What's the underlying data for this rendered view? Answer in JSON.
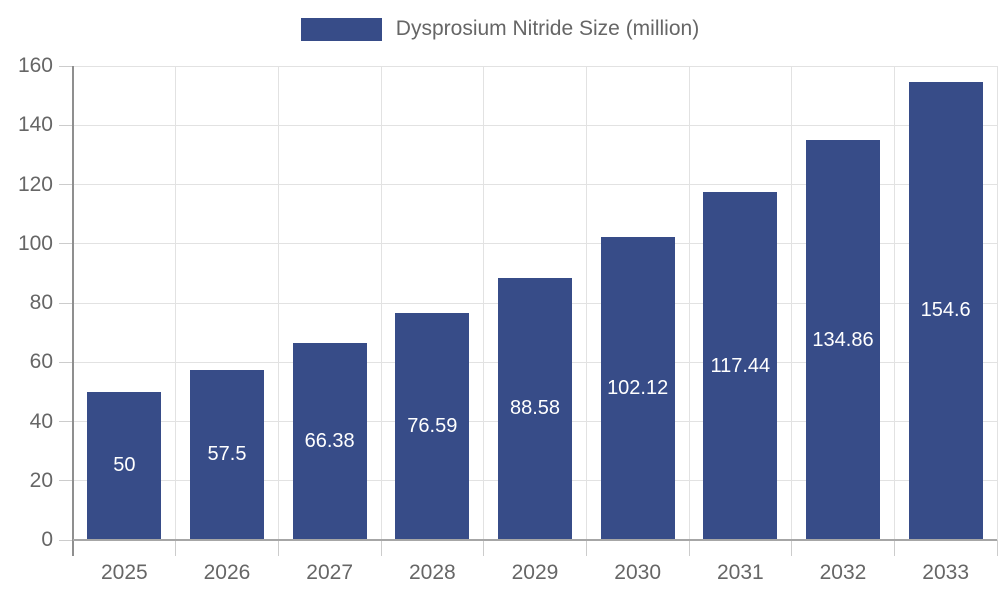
{
  "legend": {
    "label": "Dysprosium Nitride Size (million)"
  },
  "colors": {
    "bar": "#374c88",
    "axis_line": "#8f8f8f",
    "baseline": "#a6a6a6",
    "grid_line": "#e2e2e2",
    "tick": "#cccccc",
    "axis_text": "#666666",
    "value_text": "#ffffff"
  },
  "chart_data": {
    "type": "bar",
    "title": "Dysprosium Nitride Size (million)",
    "categories": [
      "2025",
      "2026",
      "2027",
      "2028",
      "2029",
      "2030",
      "2031",
      "2032",
      "2033"
    ],
    "values": [
      50,
      57.5,
      66.38,
      76.59,
      88.58,
      102.12,
      117.44,
      134.86,
      154.6
    ],
    "value_labels": [
      "50",
      "57.5",
      "66.38",
      "76.59",
      "88.58",
      "102.12",
      "117.44",
      "134.86",
      "154.6"
    ],
    "xlabel": "",
    "ylabel": "",
    "ylim": [
      0,
      160
    ],
    "ytick_step": 20,
    "ytick_labels": [
      "0",
      "20",
      "40",
      "60",
      "80",
      "100",
      "120",
      "140",
      "160"
    ],
    "grid": true,
    "legend_position": "top"
  }
}
